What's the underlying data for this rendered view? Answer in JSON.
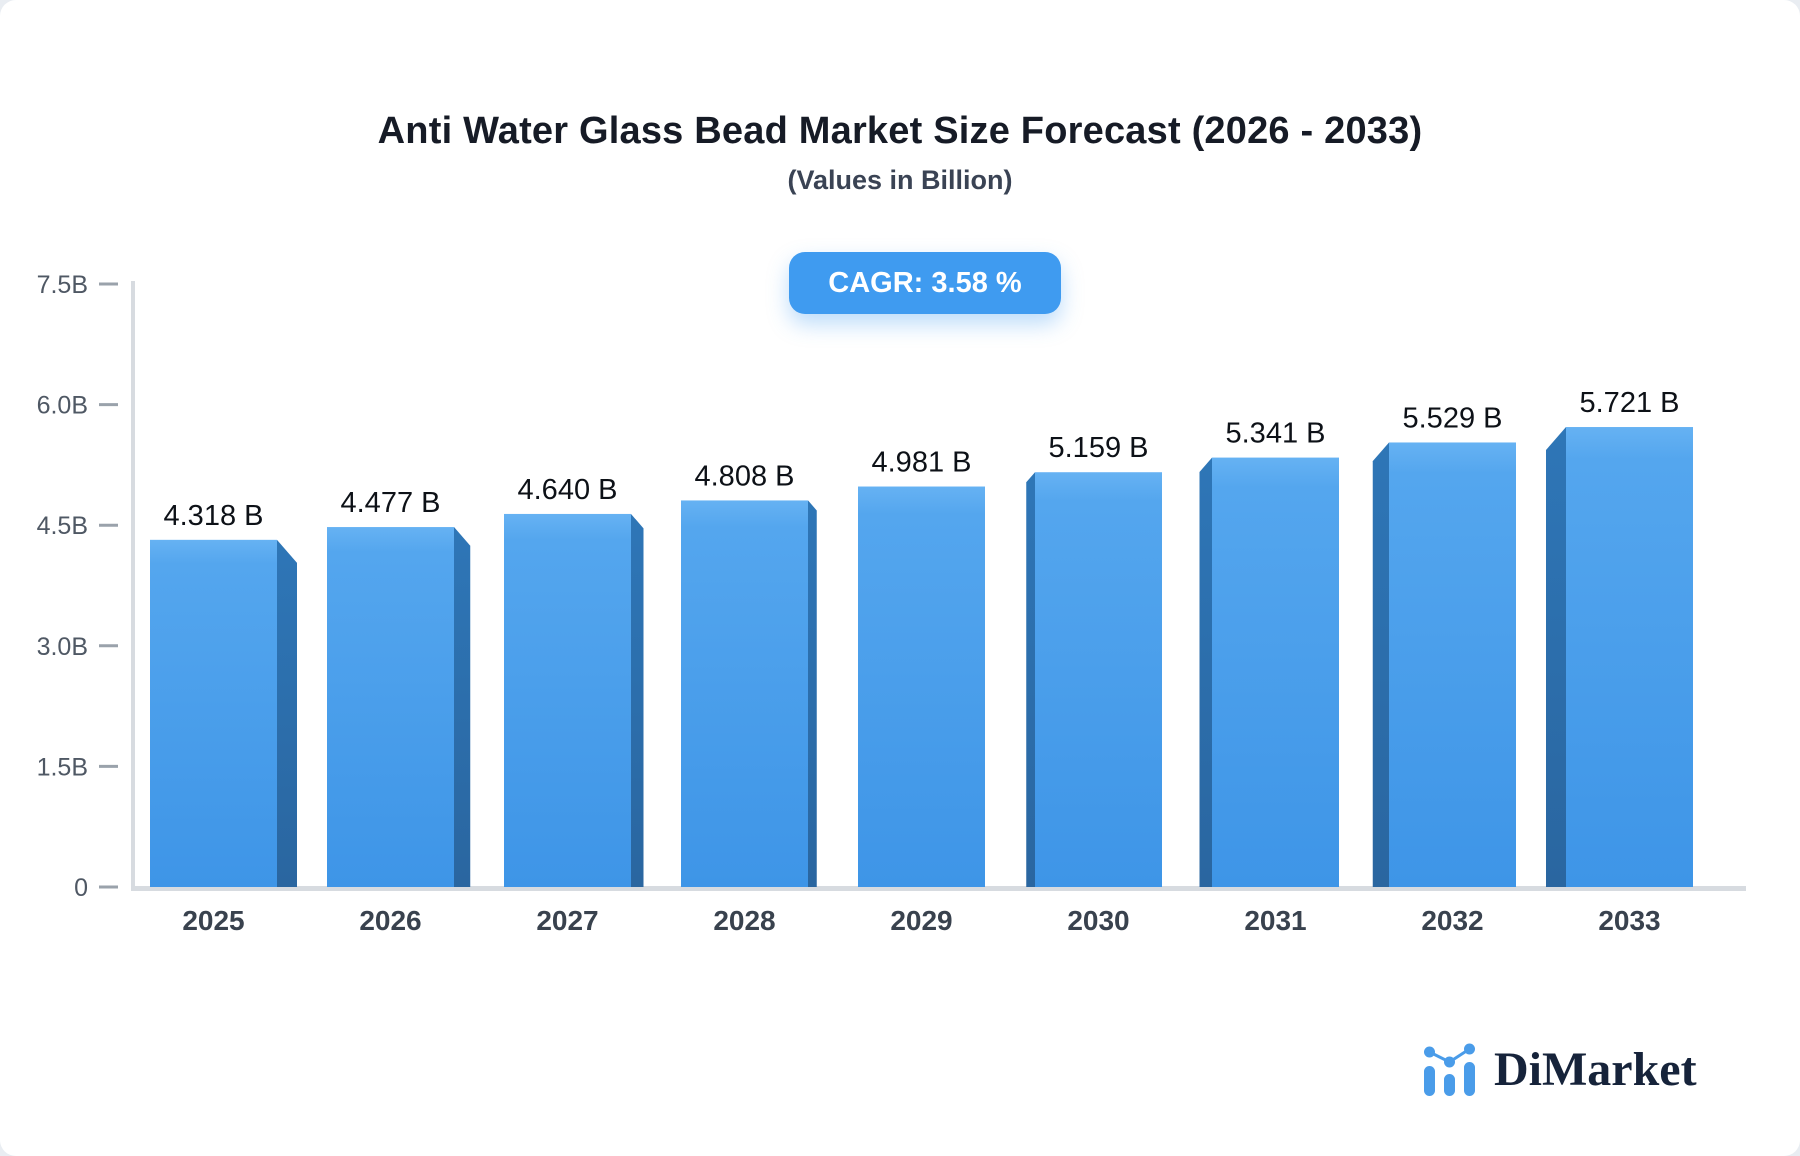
{
  "header": {
    "title": "Anti Water Glass Bead Market Size Forecast (2026 - 2033)",
    "subtitle": "(Values in Billion)",
    "cagr_badge": "CAGR: 3.58 %"
  },
  "footer": {
    "brand": "DiMarket",
    "logo_icon": "bar-chart-dots-logo-icon"
  },
  "colors": {
    "bar_front_top": "#66b2f3",
    "bar_front_mid": "#54a6ee",
    "bar_front_bottom": "#3e95e7",
    "bar_side_top": "#2e76b7",
    "bar_side_bottom": "#2a66a0",
    "badge_bg": "#3f9bf0",
    "axis_line": "#d7dbe0",
    "tick_dash": "#9aa2ab",
    "tick_label": "#4f5864",
    "year_label": "#39424e",
    "value_label": "#0d1117",
    "brand_icon": "#4a9ce9",
    "brand_text": "#16233a"
  },
  "chart_data": {
    "type": "bar",
    "style": "3d-perspective-bars",
    "title": "Anti Water Glass Bead Market Size Forecast (2026 - 2033)",
    "subtitle": "(Values in Billion)",
    "annotation": "CAGR: 3.58 %",
    "categories": [
      "2025",
      "2026",
      "2027",
      "2028",
      "2029",
      "2030",
      "2031",
      "2032",
      "2033"
    ],
    "values": [
      4.318,
      4.477,
      4.64,
      4.808,
      4.981,
      5.159,
      5.341,
      5.529,
      5.721
    ],
    "value_labels": [
      "4.318 B",
      "4.477 B",
      "4.640 B",
      "4.808 B",
      "4.981 B",
      "5.159 B",
      "5.341 B",
      "5.529 B",
      "5.721 B"
    ],
    "unit": "B",
    "xlabel": "",
    "ylabel": "",
    "ylim": [
      0,
      7.5
    ],
    "yticks": [
      {
        "value": 7.5,
        "label": "7.5B"
      },
      {
        "value": 6.0,
        "label": "6.0B"
      },
      {
        "value": 4.5,
        "label": "4.5B"
      },
      {
        "value": 3.0,
        "label": "3.0B"
      },
      {
        "value": 1.5,
        "label": "1.5B"
      },
      {
        "value": 0,
        "label": "0"
      }
    ],
    "grid": false,
    "legend": false
  }
}
